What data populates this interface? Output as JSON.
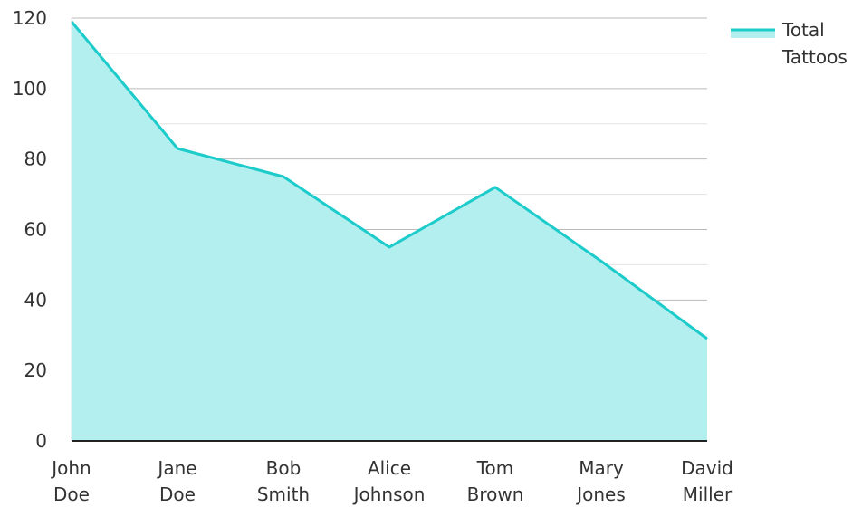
{
  "chart_data": {
    "type": "area",
    "title": "",
    "xlabel": "",
    "ylabel": "",
    "categories": [
      [
        "John",
        "Doe"
      ],
      [
        "Jane",
        "Doe"
      ],
      [
        "Bob",
        "Smith"
      ],
      [
        "Alice",
        "Johnson"
      ],
      [
        "Tom",
        "Brown"
      ],
      [
        "Mary",
        "Jones"
      ],
      [
        "David",
        "Miller"
      ]
    ],
    "series": [
      {
        "name": [
          "Total",
          "Tattoos"
        ],
        "values": [
          119,
          83,
          75,
          55,
          72,
          51,
          29
        ],
        "line_color": "#1ecbcb",
        "fill_color": "#b3efef"
      }
    ],
    "ylim": [
      0,
      120
    ],
    "y_ticks": [
      0,
      20,
      40,
      60,
      80,
      100,
      120
    ],
    "grid": {
      "horizontal": true,
      "vertical": false,
      "minor_step": 10,
      "major_color": "#bbbbbb",
      "minor_color": "#e3e3e3"
    },
    "legend_position": "top-right"
  }
}
